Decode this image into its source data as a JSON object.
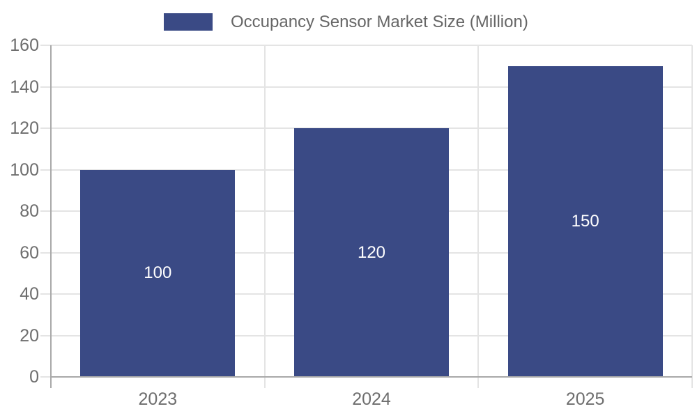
{
  "legend": {
    "label": "Occupancy Sensor Market Size (Million)"
  },
  "colors": {
    "bar": "#3A4A85",
    "grid_line": "#e4e4e4",
    "axis_line": "#a9a9a9",
    "tick_label": "#6e6e6e",
    "legend_label": "#666666",
    "data_label": "#ffffff",
    "background": "#ffffff"
  },
  "chart_data": {
    "type": "bar",
    "title": "Occupancy Sensor Market Size (Million)",
    "categories": [
      "2023",
      "2024",
      "2025"
    ],
    "values": [
      100,
      120,
      150
    ],
    "data_labels": [
      "100",
      "120",
      "150"
    ],
    "xlabel": "",
    "ylabel": "",
    "ylim": [
      0,
      160
    ],
    "ytick_step": 20,
    "ytick_labels": [
      "0",
      "20",
      "40",
      "60",
      "80",
      "100",
      "120",
      "140",
      "160"
    ],
    "grid": true,
    "legend_position": "top-center",
    "bar_label_position": "inside-middle"
  }
}
